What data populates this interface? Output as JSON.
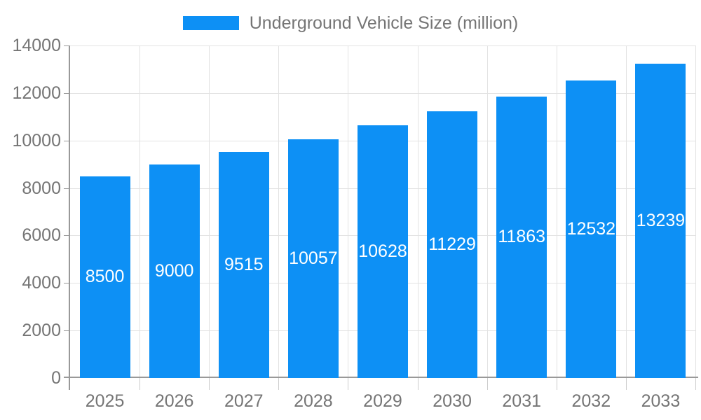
{
  "chart_data": {
    "type": "bar",
    "title": "",
    "series_name": "Underground Vehicle Size (million)",
    "categories": [
      "2025",
      "2026",
      "2027",
      "2028",
      "2029",
      "2030",
      "2031",
      "2032",
      "2033"
    ],
    "values": [
      8500,
      9000,
      9515,
      10057,
      10628,
      11229,
      11863,
      12532,
      13239
    ],
    "xlabel": "",
    "ylabel": "",
    "ylim": [
      0,
      14000
    ],
    "y_ticks": [
      0,
      2000,
      4000,
      6000,
      8000,
      10000,
      12000,
      14000
    ],
    "grid": true,
    "legend_position": "top-center",
    "value_labels": "inside-center",
    "colors": {
      "bar": "#0d90f5",
      "axis": "#999999",
      "grid": "#e2e2e2",
      "tick": "#cccccc",
      "text": "#757575",
      "value_label": "#ffffff",
      "background": "#ffffff"
    }
  }
}
